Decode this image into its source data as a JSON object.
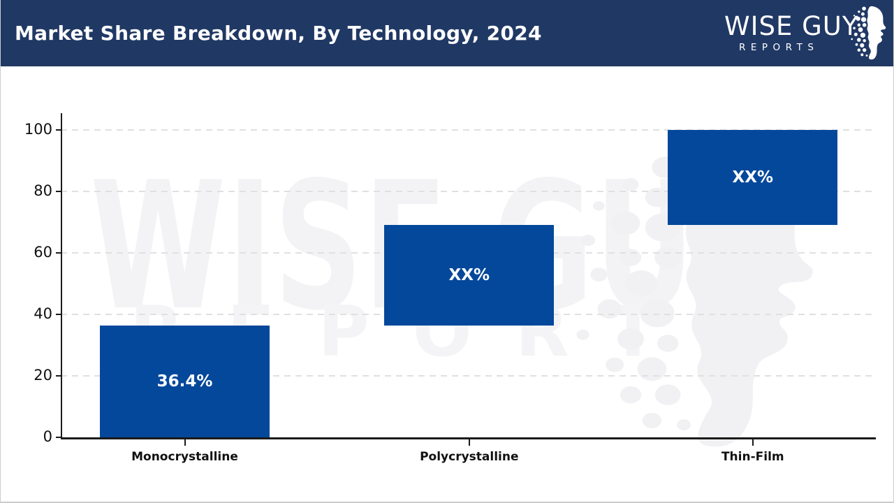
{
  "header": {
    "title": "Market Share Breakdown, By Technology, 2024",
    "logo": {
      "line1": "WISE GUY",
      "line2": "REPORTS",
      "icon": "dotted-face-profile-icon"
    }
  },
  "watermark": {
    "line1": "WISE GUY",
    "line2": "REPORTS",
    "icon": "dotted-face-profile-icon"
  },
  "chart_data": {
    "type": "bar",
    "variant": "waterfall-breakdown",
    "title": "Market Share Breakdown, By Technology, 2024",
    "categories": [
      "Monocrystalline",
      "Polycrystalline",
      "Thin-Film"
    ],
    "segments": [
      {
        "category": "Monocrystalline",
        "start": 0,
        "end": 36.4,
        "label": "36.4%"
      },
      {
        "category": "Polycrystalline",
        "start": 36.4,
        "end": 69.1,
        "label": "XX%"
      },
      {
        "category": "Thin-Film",
        "start": 69.1,
        "end": 100,
        "label": "XX%"
      }
    ],
    "xlabel": "",
    "ylabel": "",
    "ylim": [
      0,
      100
    ],
    "yticks": [
      0,
      20,
      40,
      60,
      80,
      100
    ],
    "grid": "horizontal-dashed",
    "legend": "none",
    "bar_color": "#04489B",
    "bar_label_color": "#ffffff"
  },
  "colors": {
    "header_bg": "#203864",
    "bar": "#04489B",
    "grid": "#e0e0e0",
    "axis": "#1a1a1a",
    "watermark": "#f3f3f5"
  }
}
